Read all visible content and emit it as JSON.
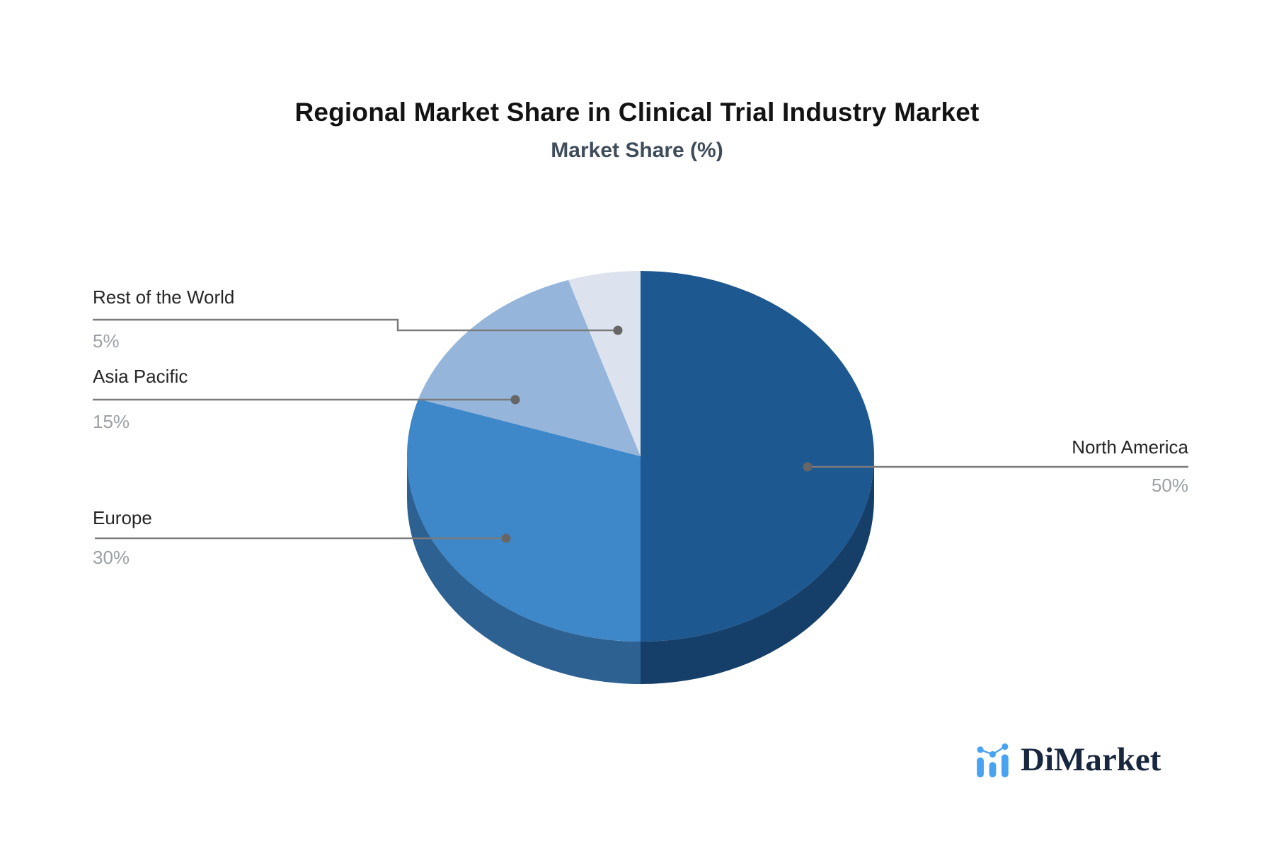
{
  "title": "Regional Market Share in Clinical Trial Industry Market",
  "subtitle": "Market Share (%)",
  "watermark": {
    "brand": "DiMarket",
    "icon": "mini-bar-chart-trend-icon"
  },
  "colors": {
    "leader_line": "#7b7b7b",
    "callout_dot": "#666666",
    "label_text": "#262626",
    "percent_text": "#9aa0a6",
    "title_text": "#131313",
    "subtitle_text": "#3f4c5a",
    "logo_blue": "#4aa3f0",
    "logo_navy": "#18273e"
  },
  "chart_data": {
    "type": "pie",
    "style": "3d",
    "title": "Regional Market Share in Clinical Trial Industry Market",
    "value_label": "Market Share (%)",
    "unit": "%",
    "start_angle_deg": 0,
    "direction": "clockwise",
    "legend_position": "callout-labels",
    "slices": [
      {
        "label": "North America",
        "value": 50,
        "display": "50%",
        "color": "#1d5890"
      },
      {
        "label": "Europe",
        "value": 30,
        "display": "30%",
        "color": "#3e87c9"
      },
      {
        "label": "Asia Pacific",
        "value": 15,
        "display": "15%",
        "color": "#95b5db"
      },
      {
        "label": "Rest of the World",
        "value": 5,
        "display": "5%",
        "color": "#dce3ee"
      }
    ]
  }
}
